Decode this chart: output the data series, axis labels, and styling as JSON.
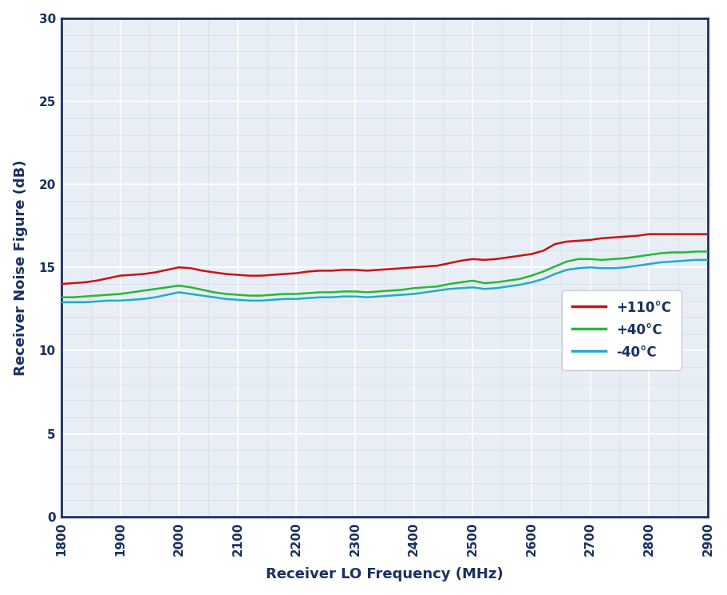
{
  "title": "",
  "xlabel": "Receiver LO Frequency (MHz)",
  "ylabel": "Receiver Noise Figure (dB)",
  "xlim": [
    1800,
    2900
  ],
  "ylim": [
    0,
    30
  ],
  "xticks": [
    1800,
    1900,
    2000,
    2100,
    2200,
    2300,
    2400,
    2500,
    2600,
    2700,
    2800,
    2900
  ],
  "yticks": [
    0,
    5,
    10,
    15,
    20,
    25,
    30
  ],
  "figure_bg_color": "#ffffff",
  "plot_bg_color": "#e8eef5",
  "major_grid_color": "#ffffff",
  "minor_grid_color": "#d0dce8",
  "axis_color": "#1a3060",
  "line_colors": [
    "#cc1111",
    "#22bb33",
    "#22aacc"
  ],
  "line_labels": [
    "+110°C",
    "+40°C",
    "-40°C"
  ],
  "line_width": 1.8,
  "x_data": [
    1800,
    1820,
    1840,
    1860,
    1880,
    1900,
    1920,
    1940,
    1960,
    1980,
    2000,
    2020,
    2040,
    2060,
    2080,
    2100,
    2120,
    2140,
    2160,
    2180,
    2200,
    2220,
    2240,
    2260,
    2280,
    2300,
    2320,
    2340,
    2360,
    2380,
    2400,
    2420,
    2440,
    2460,
    2480,
    2500,
    2520,
    2540,
    2560,
    2580,
    2600,
    2620,
    2640,
    2660,
    2680,
    2700,
    2720,
    2740,
    2760,
    2780,
    2800,
    2820,
    2840,
    2860,
    2880,
    2900
  ],
  "y_110": [
    14.0,
    14.05,
    14.1,
    14.2,
    14.35,
    14.5,
    14.55,
    14.6,
    14.7,
    14.85,
    15.0,
    14.95,
    14.8,
    14.7,
    14.6,
    14.55,
    14.5,
    14.5,
    14.55,
    14.6,
    14.65,
    14.75,
    14.8,
    14.8,
    14.85,
    14.85,
    14.8,
    14.85,
    14.9,
    14.95,
    15.0,
    15.05,
    15.1,
    15.25,
    15.4,
    15.5,
    15.45,
    15.5,
    15.6,
    15.7,
    15.8,
    16.0,
    16.4,
    16.55,
    16.6,
    16.65,
    16.75,
    16.8,
    16.85,
    16.9,
    17.0,
    17.0,
    17.0,
    17.0,
    17.0,
    17.0
  ],
  "y_40": [
    13.2,
    13.2,
    13.25,
    13.3,
    13.35,
    13.4,
    13.5,
    13.6,
    13.7,
    13.8,
    13.9,
    13.8,
    13.65,
    13.5,
    13.4,
    13.35,
    13.3,
    13.3,
    13.35,
    13.4,
    13.4,
    13.45,
    13.5,
    13.5,
    13.55,
    13.55,
    13.5,
    13.55,
    13.6,
    13.65,
    13.75,
    13.8,
    13.85,
    14.0,
    14.1,
    14.2,
    14.05,
    14.1,
    14.2,
    14.3,
    14.5,
    14.75,
    15.05,
    15.35,
    15.5,
    15.5,
    15.45,
    15.5,
    15.55,
    15.65,
    15.75,
    15.85,
    15.9,
    15.9,
    15.95,
    15.95
  ],
  "y_n40": [
    12.9,
    12.9,
    12.9,
    12.95,
    13.0,
    13.0,
    13.05,
    13.1,
    13.2,
    13.35,
    13.5,
    13.4,
    13.3,
    13.2,
    13.1,
    13.05,
    13.0,
    13.0,
    13.05,
    13.1,
    13.1,
    13.15,
    13.2,
    13.2,
    13.25,
    13.25,
    13.2,
    13.25,
    13.3,
    13.35,
    13.4,
    13.5,
    13.6,
    13.7,
    13.75,
    13.8,
    13.7,
    13.75,
    13.85,
    13.95,
    14.1,
    14.3,
    14.6,
    14.85,
    14.95,
    15.0,
    14.95,
    14.95,
    15.0,
    15.1,
    15.2,
    15.3,
    15.35,
    15.4,
    15.45,
    15.45
  ],
  "font_color": "#1a3060",
  "label_fontsize": 13,
  "tick_fontsize": 11,
  "legend_fontsize": 12
}
